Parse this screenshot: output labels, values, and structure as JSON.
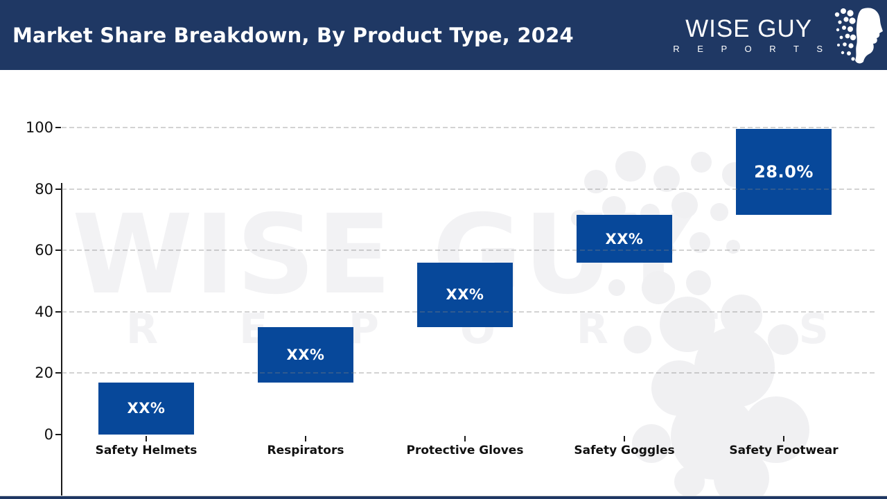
{
  "header": {
    "title": "Market Share Breakdown, By Product Type, 2024",
    "logo": {
      "brand_line1": "WISE GUY",
      "brand_line2": "R E P O R T S",
      "face_icon": "dotted-face-profile"
    }
  },
  "watermark": {
    "line1": "WISE GUY",
    "line2": "R E P O R T S"
  },
  "colors": {
    "header_bg": "#1f3864",
    "footer_bg": "#1f3864",
    "bar": "#07489a",
    "bar_label": "#ffffff",
    "axis": "#1a1a1a",
    "gridline": "#d9d9d9",
    "watermark": "#f2f2f4"
  },
  "chart_data": {
    "type": "bar",
    "subtype": "floating-waterfall-columns",
    "title": "Market Share Breakdown, By Product Type, 2024",
    "xlabel": "",
    "ylabel": "",
    "ylim": [
      0,
      105
    ],
    "yticks": [
      0,
      20,
      40,
      60,
      80,
      100
    ],
    "grid": {
      "horizontal": true,
      "style": "dashed",
      "drawn_over_bars": true
    },
    "legend": null,
    "categories": [
      "Safety Helmets",
      "Respirators",
      "Protective Gloves",
      "Safety Goggles",
      "Safety Footwear"
    ],
    "bars": [
      {
        "category": "Safety Helmets",
        "start": 0,
        "end": 17,
        "height": 17,
        "label": "XX%"
      },
      {
        "category": "Respirators",
        "start": 17,
        "end": 35,
        "height": 18,
        "label": "XX%"
      },
      {
        "category": "Protective Gloves",
        "start": 35,
        "end": 56,
        "height": 21,
        "label": "XX%"
      },
      {
        "category": "Safety Goggles",
        "start": 56,
        "end": 71.5,
        "height": 15.5,
        "label": "XX%"
      },
      {
        "category": "Safety Footwear",
        "start": 71.5,
        "end": 99.5,
        "height": 28,
        "label": "28.0%"
      }
    ]
  }
}
